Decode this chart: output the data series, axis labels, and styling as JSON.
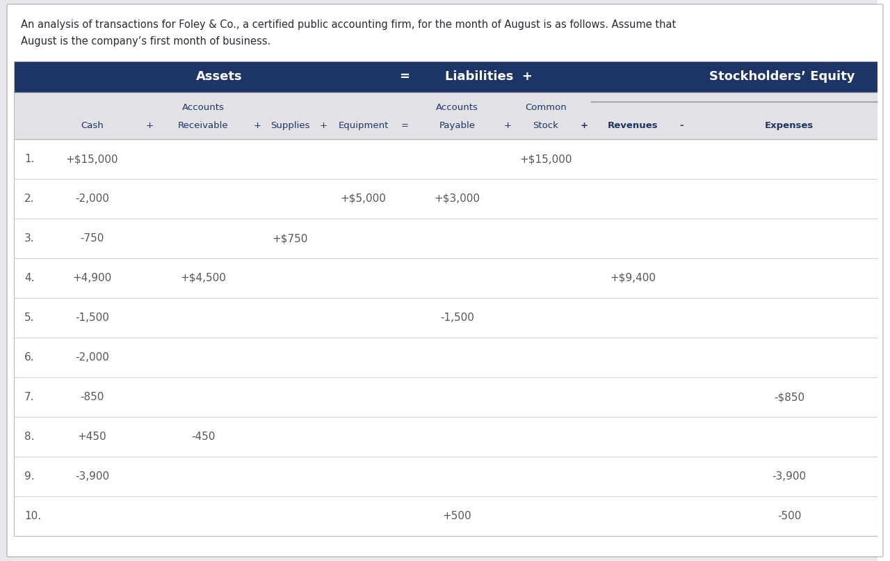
{
  "title_line1": "An analysis of transactions for Foley & Co., a certified public accounting firm, for the month of August is as follows. Assume that",
  "title_line2": "August is the company’s first month of business.",
  "header_bg_color": "#1c3566",
  "subheader_bg_color": "#e2e2e6",
  "data_text_color": "#555560",
  "header_text_color": "#ffffff",
  "subheader_text_color": "#1c3566",
  "outer_bg": "#e8e8ec",
  "row_line_color": "#d0d0d8",
  "row_labels": [
    "1.",
    "2.",
    "3.",
    "4.",
    "5.",
    "6.",
    "7.",
    "8.",
    "9.",
    "10."
  ],
  "data_rows": [
    [
      "+$15,000",
      "",
      "",
      "",
      "",
      "+$15,000",
      "",
      ""
    ],
    [
      "-2,000",
      "",
      "",
      "+$5,000",
      "+$3,000",
      "",
      "",
      ""
    ],
    [
      "-750",
      "",
      "+$750",
      "",
      "",
      "",
      "",
      ""
    ],
    [
      "+4,900",
      "+$4,500",
      "",
      "",
      "",
      "",
      "+$9,400",
      ""
    ],
    [
      "-1,500",
      "",
      "",
      "",
      "-1,500",
      "",
      "",
      ""
    ],
    [
      "-2,000",
      "",
      "",
      "",
      "",
      "",
      "",
      ""
    ],
    [
      "-850",
      "",
      "",
      "",
      "",
      "",
      "",
      "-$850"
    ],
    [
      "+450",
      "-450",
      "",
      "",
      "",
      "",
      "",
      ""
    ],
    [
      "-3,900",
      "",
      "",
      "",
      "",
      "",
      "",
      "-3,900"
    ],
    [
      "",
      "",
      "",
      "",
      "+500",
      "",
      "",
      "-500"
    ]
  ],
  "figsize": [
    12.8,
    8.06
  ],
  "dpi": 100
}
